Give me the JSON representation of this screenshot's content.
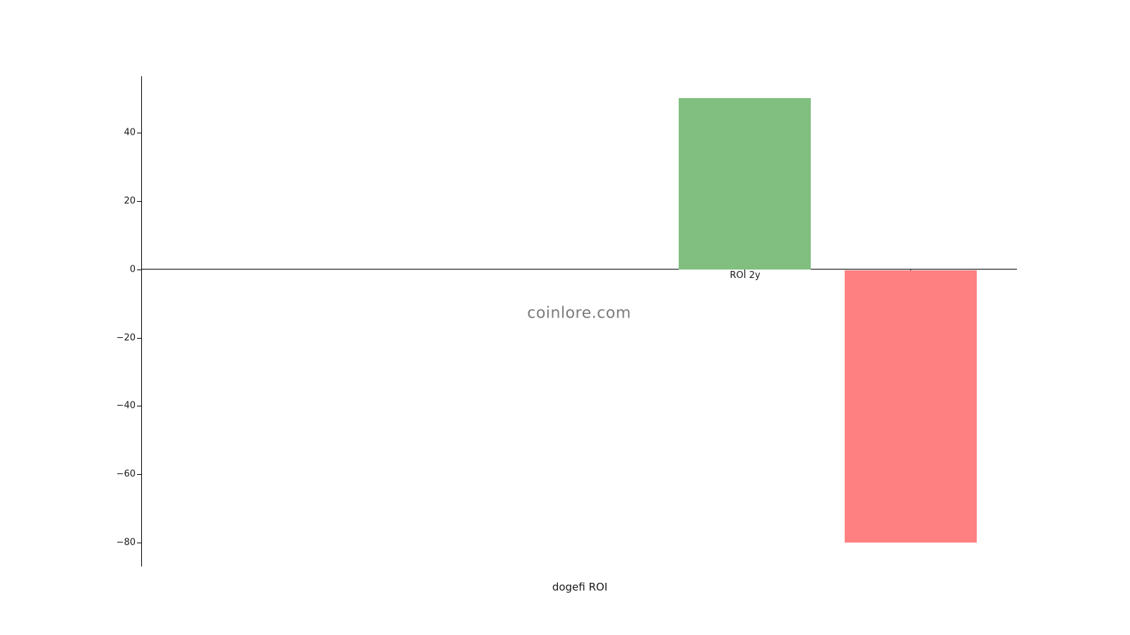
{
  "watermark": "coinlore.com",
  "chart_data": {
    "type": "bar",
    "title": "",
    "xlabel": "dogefi ROI",
    "ylabel": "",
    "categories": [
      "ROI 2y",
      ""
    ],
    "values": [
      50,
      -80
    ],
    "bar_colors": [
      "#80bf80",
      "#ff8080"
    ],
    "yticks": [
      40,
      20,
      0,
      -20,
      -40,
      -60,
      -80
    ],
    "ylim": [
      -87,
      56.5
    ],
    "grid": false,
    "legend": "none",
    "axis_color": "#000000",
    "text_color": "#1a1a1a",
    "watermark_color": "#7b7b7b"
  }
}
